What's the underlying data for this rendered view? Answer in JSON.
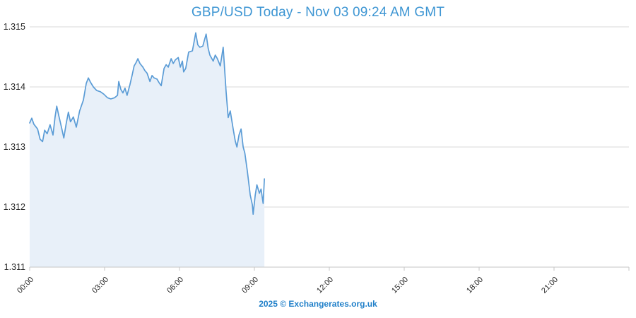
{
  "title": "GBP/USD Today - Nov 03 09:24 AM GMT",
  "footer": "2025 © Exchangerates.org.uk",
  "colors": {
    "title": "#3e96d3",
    "footer": "#2180c9",
    "line": "#5b9cd6",
    "fill": "#e8f0f9",
    "grid": "#d8d8d8",
    "axis_line": "#c6c6c6",
    "tick_mark": "#c6c6c6",
    "label": "#262626"
  },
  "chart_data": {
    "type": "area",
    "title": "GBP/USD Today - Nov 03 09:24 AM GMT",
    "series_name": "GBP/USD",
    "xlabel": "",
    "ylabel": "",
    "legend": "none",
    "grid": "horizontal-only",
    "ylim": [
      1.311,
      1.315
    ],
    "y_tick_values": [
      1.311,
      1.312,
      1.313,
      1.314,
      1.315
    ],
    "y_tick_decimals": 3,
    "x_range_minutes": [
      0,
      1440
    ],
    "x_ticks": [
      {
        "minutes": 0,
        "label": "00:00"
      },
      {
        "minutes": 180,
        "label": "03:00"
      },
      {
        "minutes": 360,
        "label": "06:00"
      },
      {
        "minutes": 540,
        "label": "09:00"
      },
      {
        "minutes": 720,
        "label": "12:00"
      },
      {
        "minutes": 900,
        "label": "15:00"
      },
      {
        "minutes": 1080,
        "label": "18:00"
      },
      {
        "minutes": 1260,
        "label": "21:00"
      },
      {
        "minutes": 1440,
        "label": ""
      }
    ],
    "points": [
      [
        0,
        1.3134
      ],
      [
        5,
        1.31348
      ],
      [
        10,
        1.31338
      ],
      [
        19,
        1.3133
      ],
      [
        25,
        1.31313
      ],
      [
        31,
        1.31309
      ],
      [
        36,
        1.31328
      ],
      [
        42,
        1.31322
      ],
      [
        49,
        1.31337
      ],
      [
        56,
        1.3132
      ],
      [
        61,
        1.3135
      ],
      [
        65,
        1.31368
      ],
      [
        70,
        1.31352
      ],
      [
        76,
        1.31334
      ],
      [
        82,
        1.31315
      ],
      [
        88,
        1.3134
      ],
      [
        93,
        1.31358
      ],
      [
        98,
        1.31342
      ],
      [
        105,
        1.3135
      ],
      [
        112,
        1.31333
      ],
      [
        120,
        1.3136
      ],
      [
        129,
        1.31378
      ],
      [
        136,
        1.31406
      ],
      [
        141,
        1.31415
      ],
      [
        146,
        1.31408
      ],
      [
        153,
        1.314
      ],
      [
        161,
        1.31394
      ],
      [
        170,
        1.31392
      ],
      [
        178,
        1.31388
      ],
      [
        187,
        1.31382
      ],
      [
        195,
        1.3138
      ],
      [
        204,
        1.31382
      ],
      [
        211,
        1.31386
      ],
      [
        214,
        1.31409
      ],
      [
        219,
        1.31396
      ],
      [
        224,
        1.3139
      ],
      [
        229,
        1.31398
      ],
      [
        234,
        1.31386
      ],
      [
        241,
        1.31404
      ],
      [
        246,
        1.31419
      ],
      [
        251,
        1.31435
      ],
      [
        256,
        1.31441
      ],
      [
        260,
        1.31447
      ],
      [
        265,
        1.31439
      ],
      [
        272,
        1.31433
      ],
      [
        277,
        1.31427
      ],
      [
        282,
        1.31423
      ],
      [
        289,
        1.31409
      ],
      [
        294,
        1.31419
      ],
      [
        299,
        1.31415
      ],
      [
        306,
        1.31413
      ],
      [
        311,
        1.31407
      ],
      [
        316,
        1.31402
      ],
      [
        323,
        1.31431
      ],
      [
        328,
        1.31437
      ],
      [
        333,
        1.31433
      ],
      [
        340,
        1.31447
      ],
      [
        345,
        1.31439
      ],
      [
        350,
        1.31445
      ],
      [
        357,
        1.31449
      ],
      [
        362,
        1.31433
      ],
      [
        367,
        1.31443
      ],
      [
        370,
        1.31425
      ],
      [
        375,
        1.31431
      ],
      [
        382,
        1.31458
      ],
      [
        391,
        1.3146
      ],
      [
        399,
        1.3149
      ],
      [
        404,
        1.3147
      ],
      [
        409,
        1.31466
      ],
      [
        416,
        1.31468
      ],
      [
        424,
        1.31488
      ],
      [
        429,
        1.31464
      ],
      [
        433,
        1.31453
      ],
      [
        441,
        1.31443
      ],
      [
        446,
        1.31453
      ],
      [
        451,
        1.31447
      ],
      [
        458,
        1.31435
      ],
      [
        465,
        1.31466
      ],
      [
        472,
        1.31392
      ],
      [
        477,
        1.31349
      ],
      [
        482,
        1.3136
      ],
      [
        489,
        1.3133
      ],
      [
        494,
        1.3131
      ],
      [
        498,
        1.313
      ],
      [
        503,
        1.3132
      ],
      [
        508,
        1.3133
      ],
      [
        513,
        1.313
      ],
      [
        517,
        1.3129
      ],
      [
        523,
        1.3126
      ],
      [
        530,
        1.3122
      ],
      [
        535,
        1.31204
      ],
      [
        537,
        1.31188
      ],
      [
        542,
        1.3122
      ],
      [
        546,
        1.31237
      ],
      [
        549,
        1.3123
      ],
      [
        552,
        1.31223
      ],
      [
        556,
        1.3123
      ],
      [
        561,
        1.31206
      ],
      [
        564,
        1.31247
      ]
    ]
  },
  "layout_note": "single intraday area chart, no legend, no vertical gridlines"
}
